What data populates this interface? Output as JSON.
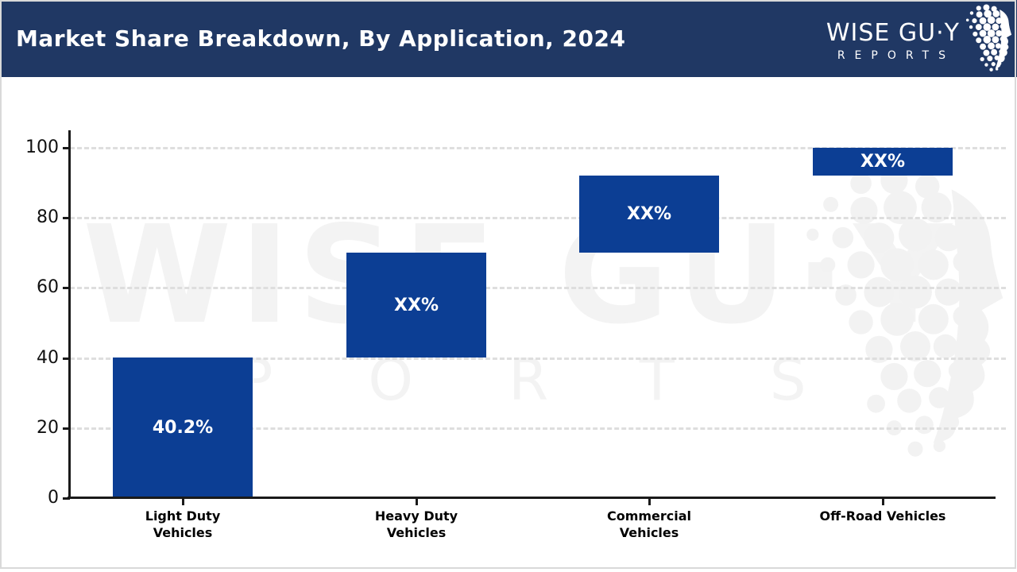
{
  "header": {
    "bg_color": "#203864",
    "title": "Market Share Breakdown, By Application, 2024",
    "logo": {
      "wordmark": "WISE GU·Y",
      "subtext": "REPORTS"
    }
  },
  "watermark": {
    "wordmark": "WISE GU·Y",
    "subtext": "PORTS"
  },
  "chart_data": {
    "type": "bar",
    "subtype": "waterfall",
    "title": "Market Share Breakdown, By Application, 2024",
    "categories": [
      "Light Duty Vehicles",
      "Heavy Duty Vehicles",
      "Commercial Vehicles",
      "Off-Road Vehicles"
    ],
    "category_lines": [
      [
        "Light Duty",
        "Vehicles"
      ],
      [
        "Heavy Duty",
        "Vehicles"
      ],
      [
        "Commercial",
        "Vehicles"
      ],
      [
        "Off-Road Vehicles"
      ]
    ],
    "segments": [
      {
        "category": "Light Duty Vehicles",
        "start": 0,
        "end": 40.2,
        "label": "40.2%"
      },
      {
        "category": "Heavy Duty Vehicles",
        "start": 40.2,
        "end": 70,
        "label": "XX%"
      },
      {
        "category": "Commercial Vehicles",
        "start": 70,
        "end": 92,
        "label": "XX%"
      },
      {
        "category": "Off-Road Vehicles",
        "start": 92,
        "end": 100,
        "label": "XX%"
      }
    ],
    "ylim": [
      0,
      100
    ],
    "yticks": [
      0,
      20,
      40,
      60,
      80,
      100
    ],
    "grid": "horizontal-dashed",
    "legend": "none",
    "bar_color": "#0c3e94",
    "value_label_color": "#ffffff"
  }
}
